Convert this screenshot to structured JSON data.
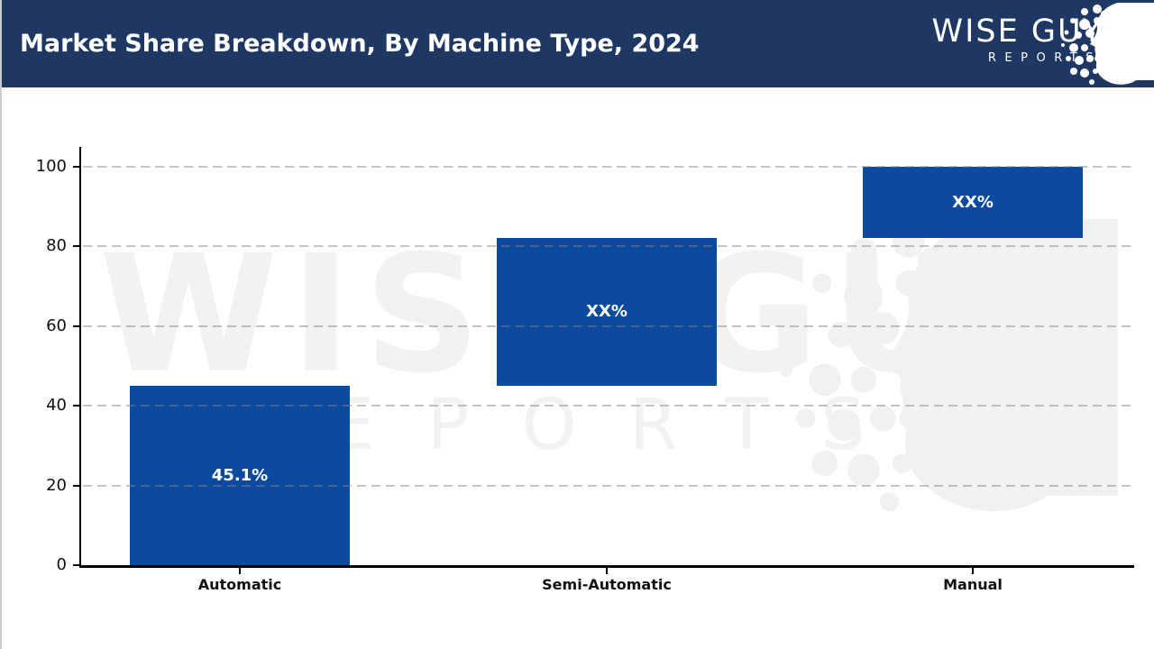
{
  "header": {
    "title": "Market Share Breakdown, By Machine Type, 2024",
    "logo": {
      "wordmark": "WISE GUY",
      "sub_wordmark": "REPORTS",
      "face_icon": "dotted-head-profile"
    }
  },
  "watermark": {
    "line1": "WISE GUY",
    "line2": "REPORTS"
  },
  "colors": {
    "header_bg": "#1f3863",
    "bar_fill": "#0b4a9e",
    "bar_label_text": "#ffffff",
    "axis": "#000000",
    "tick_label": "#111111",
    "gridline_over_white": "#c6c6c6",
    "watermark": "#f2f2f2",
    "frame_border": "#cbcbcb"
  },
  "chart_data": {
    "type": "bar",
    "subtype": "waterfall",
    "title": "Market Share Breakdown, By Machine Type, 2024",
    "categories": [
      "Automatic",
      "Semi-Automatic",
      "Manual"
    ],
    "segments": [
      {
        "category": "Automatic",
        "start": 0,
        "end": 45.1,
        "label": "45.1%"
      },
      {
        "category": "Semi-Automatic",
        "start": 45.1,
        "end": 82.2,
        "label": "XX%"
      },
      {
        "category": "Manual",
        "start": 82.2,
        "end": 100,
        "label": "XX%"
      }
    ],
    "yticks": [
      0,
      20,
      40,
      60,
      80,
      100
    ],
    "ylim": [
      0,
      105
    ],
    "xlabel": "",
    "ylabel": "",
    "grid": "horizontal dashed, drawn above bars",
    "legend": "none"
  }
}
